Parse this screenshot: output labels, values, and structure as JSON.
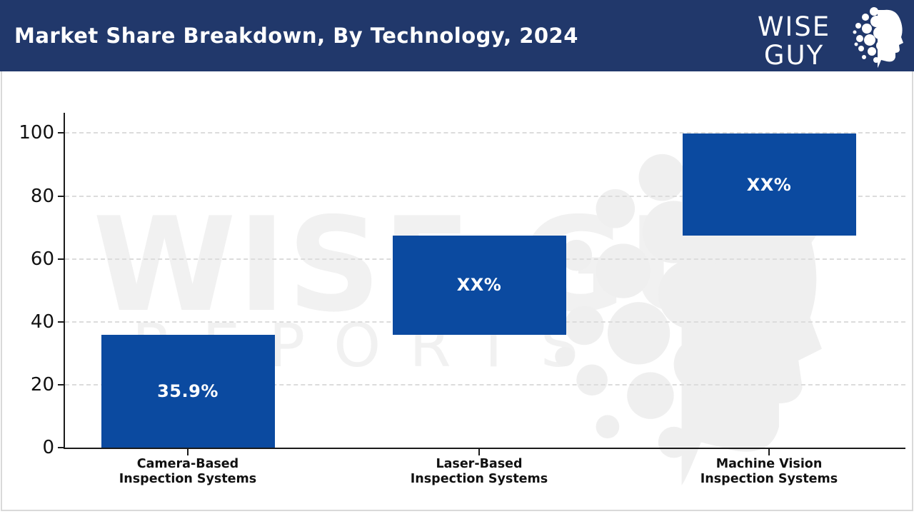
{
  "header": {
    "title": "Market Share Breakdown, By Technology, 2024",
    "logo": {
      "line1": "WISE GUY",
      "line2": "REPORTS"
    }
  },
  "watermark": {
    "line1": "WISE GUY",
    "line2": "REPORTS"
  },
  "chart_data": {
    "type": "bar",
    "subtype": "waterfall",
    "title": "Market Share Breakdown, By Technology, 2024",
    "categories": [
      {
        "line1": "Camera-Based",
        "line2": "Inspection Systems"
      },
      {
        "line1": "Laser-Based",
        "line2": "Inspection Systems"
      },
      {
        "line1": "Machine Vision",
        "line2": "Inspection Systems"
      }
    ],
    "bars": [
      {
        "label": "35.9%",
        "start": 0,
        "end": 35.9
      },
      {
        "label": "XX%",
        "start": 35.9,
        "end": 67.4
      },
      {
        "label": "XX%",
        "start": 67.4,
        "end": 99.8
      }
    ],
    "yticks": [
      0,
      20,
      40,
      60,
      80,
      100
    ],
    "ylim": [
      0,
      106
    ],
    "xlabel": "",
    "ylabel": "",
    "grid": "horizontal-dashed",
    "legend": "none"
  },
  "colors": {
    "header_bg": "#21386b",
    "bar": "#0b4aa0",
    "bar_label": "#ffffff",
    "grid": "#dcdcdc",
    "axis": "#1a1a1a",
    "watermark": "#f1f1f1",
    "panel_border": "#d9d9d9"
  }
}
